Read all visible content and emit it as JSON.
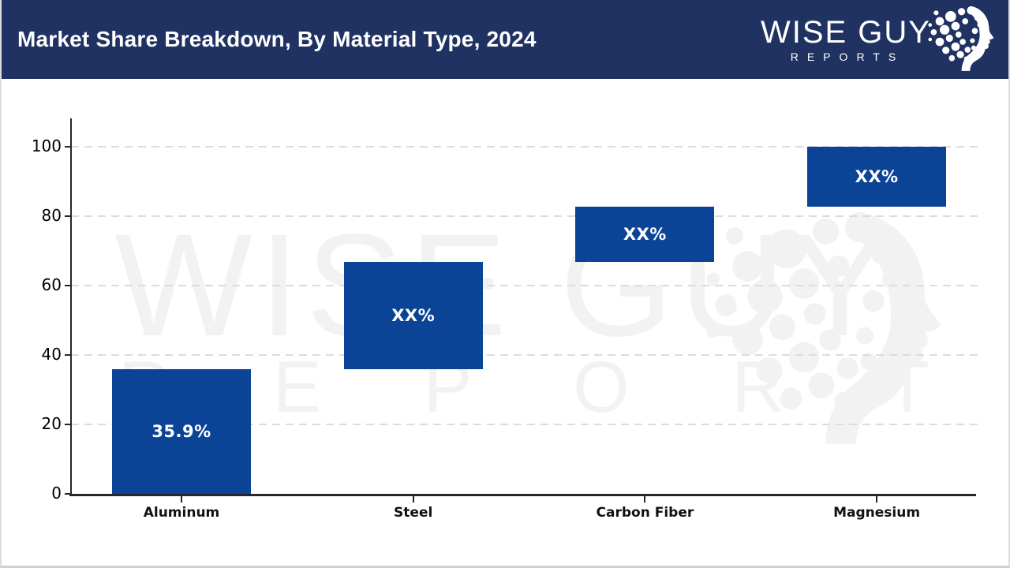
{
  "header": {
    "title": "Market Share Breakdown, By Material Type, 2024",
    "logo": {
      "line1": "WISE GUY",
      "line2": "REPORTS"
    }
  },
  "watermark": {
    "line1": "WISE GUY",
    "line2": "REPORTS"
  },
  "colors": {
    "header_bg": "#1F3262",
    "bar": "#0B4397",
    "grid": "#dcdcdc",
    "axis": "#262626",
    "watermark": "#f2f2f2",
    "bar_label": "#ffffff"
  },
  "chart_data": {
    "type": "bar",
    "subtype": "waterfall-stacked",
    "title": "Market Share Breakdown, By Material Type, 2024",
    "categories": [
      "Aluminum",
      "Steel",
      "Carbon Fiber",
      "Magnesium"
    ],
    "segments": [
      {
        "category": "Aluminum",
        "start": 0,
        "end": 35.9,
        "label": "35.9%"
      },
      {
        "category": "Steel",
        "start": 35.9,
        "end": 66.8,
        "label": "XX%"
      },
      {
        "category": "Carbon Fiber",
        "start": 66.8,
        "end": 82.7,
        "label": "XX%"
      },
      {
        "category": "Magnesium",
        "start": 82.7,
        "end": 100,
        "label": "XX%"
      }
    ],
    "y_ticks": [
      0,
      20,
      40,
      60,
      80,
      100
    ],
    "ylim": [
      0,
      100
    ],
    "xlabel": "",
    "ylabel": "",
    "grid": "horizontal-dashed",
    "legend": "none"
  }
}
